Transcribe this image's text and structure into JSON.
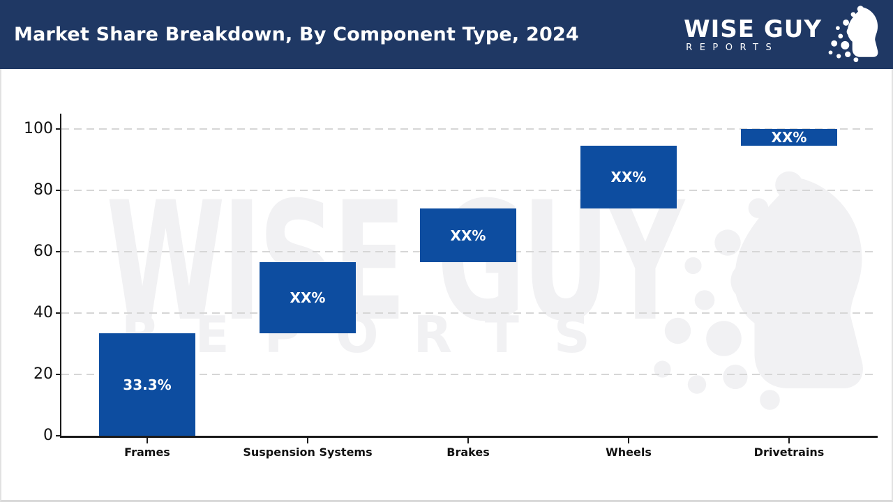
{
  "header": {
    "title": "Market Share Breakdown, By Component Type, 2024",
    "logo": {
      "line1": "WISE GUY",
      "line2": "REPORTS",
      "face_icon": "dotted-head-profile"
    },
    "bg_color": "#1f3864"
  },
  "watermark": {
    "line1": "WISE GUY",
    "line2": "REPORTS",
    "face_icon": "dotted-head-profile"
  },
  "chart_data": {
    "type": "bar",
    "subtype": "waterfall",
    "title": "Market Share Breakdown, By Component Type, 2024",
    "categories": [
      "Frames",
      "Suspension Systems",
      "Brakes",
      "Wheels",
      "Drivetrains"
    ],
    "segments": [
      {
        "category": "Frames",
        "start": 0,
        "end": 33.3,
        "label": "33.3%"
      },
      {
        "category": "Suspension Systems",
        "start": 33.3,
        "end": 56.5,
        "label": "XX%"
      },
      {
        "category": "Brakes",
        "start": 56.5,
        "end": 74,
        "label": "XX%"
      },
      {
        "category": "Wheels",
        "start": 74,
        "end": 94.5,
        "label": "XX%"
      },
      {
        "category": "Drivetrains",
        "start": 94.5,
        "end": 100,
        "label": "XX%"
      }
    ],
    "yticks": [
      0,
      20,
      40,
      60,
      80,
      100
    ],
    "ylim": [
      0,
      105
    ],
    "xlabel": "",
    "ylabel": "",
    "grid": "horizontal-dashed",
    "legend": "none",
    "bar_color": "#0d4da0",
    "label_color": "#ffffff",
    "gridline_color": "#d6d6d6",
    "axis_color": "#1a1a1a"
  }
}
